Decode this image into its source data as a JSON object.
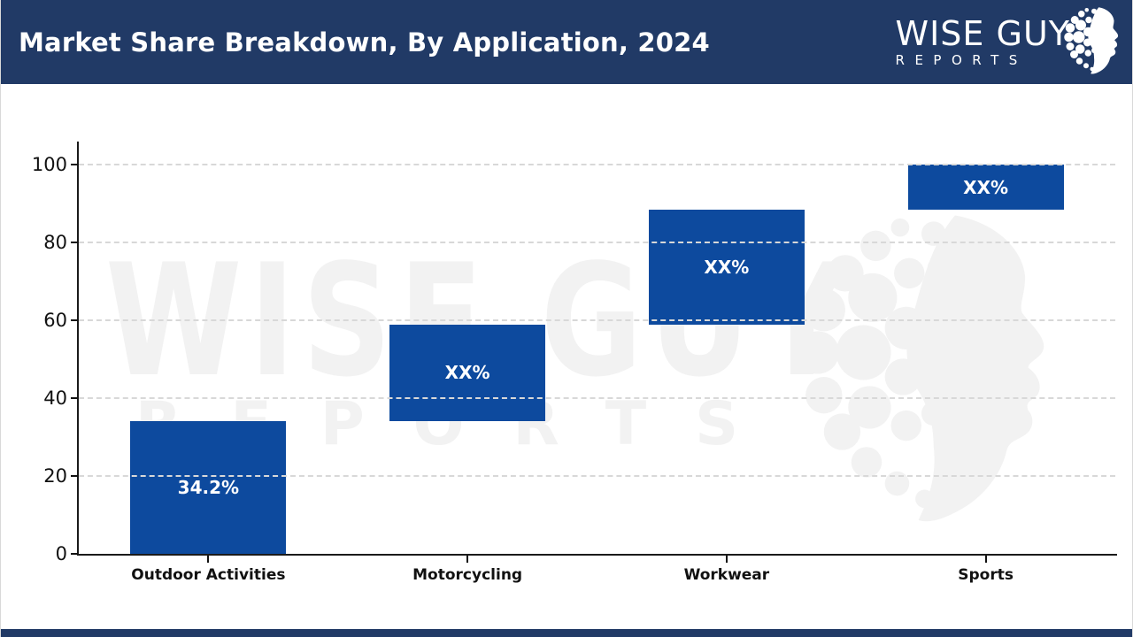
{
  "header": {
    "title": "Market Share Breakdown, By Application, 2024",
    "logo": {
      "line1": "WISE GUY",
      "line2": "REPORTS"
    },
    "bg_color": "#213a66",
    "text_color": "#ffffff"
  },
  "watermark": {
    "line1": "WISE GUY",
    "line2": "REPORTS"
  },
  "chart_data": {
    "type": "bar",
    "subtype": "waterfall-stacked",
    "title": "Market Share Breakdown, By Application, 2024",
    "categories": [
      "Outdoor Activities",
      "Motorcycling",
      "Workwear",
      "Sports"
    ],
    "segments": [
      {
        "category": "Outdoor Activities",
        "start": 0,
        "end": 34.2,
        "label": "34.2%"
      },
      {
        "category": "Motorcycling",
        "start": 34.2,
        "end": 58.8,
        "label": "XX%"
      },
      {
        "category": "Workwear",
        "start": 58.8,
        "end": 88.3,
        "label": "XX%"
      },
      {
        "category": "Sports",
        "start": 88.3,
        "end": 100,
        "label": "XX%"
      }
    ],
    "y_ticks": [
      0,
      20,
      40,
      60,
      80,
      100
    ],
    "ylim": [
      0,
      106
    ],
    "xlabel": "",
    "ylabel": "",
    "grid": "horizontal-dashed-over-bars",
    "legend": "none",
    "bar_color": "#0d4a9e",
    "label_color": "#ffffff"
  }
}
